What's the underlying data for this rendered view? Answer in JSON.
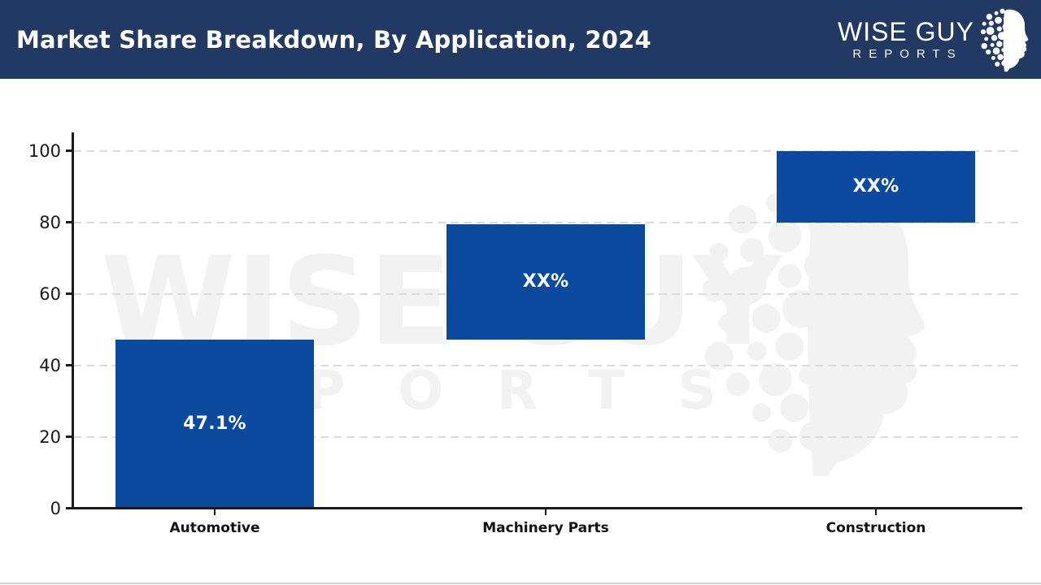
{
  "header": {
    "title": "Market Share Breakdown, By Application, 2024",
    "logo": {
      "line1": "WISE GUY",
      "line2": "REPORTS"
    }
  },
  "watermark": {
    "line1": "WISE GUY",
    "line2": "REPORTS"
  },
  "chart_data": {
    "type": "bar",
    "variant": "floating-waterfall",
    "title": "Market Share Breakdown, By Application, 2024",
    "categories": [
      "Automotive",
      "Machinery Parts",
      "Construction"
    ],
    "segments": [
      {
        "category": "Automotive",
        "start": 0,
        "end": 47.1,
        "label": "47.1%"
      },
      {
        "category": "Machinery Parts",
        "start": 47.1,
        "end": 79.5,
        "label": "XX%"
      },
      {
        "category": "Construction",
        "start": 80,
        "end": 100,
        "label": "XX%"
      }
    ],
    "ylim": [
      0,
      100
    ],
    "yticks": [
      0,
      20,
      40,
      60,
      80,
      100
    ],
    "grid": "horizontal-dashed",
    "legend": "none",
    "colors": {
      "bar": "#0b4a9e",
      "header_band": "#223a63",
      "grid": "#dcdcdc",
      "axis": "#1a1a1a",
      "bar_label_text": "#ffffff",
      "watermark": "#f2f2f2"
    }
  }
}
